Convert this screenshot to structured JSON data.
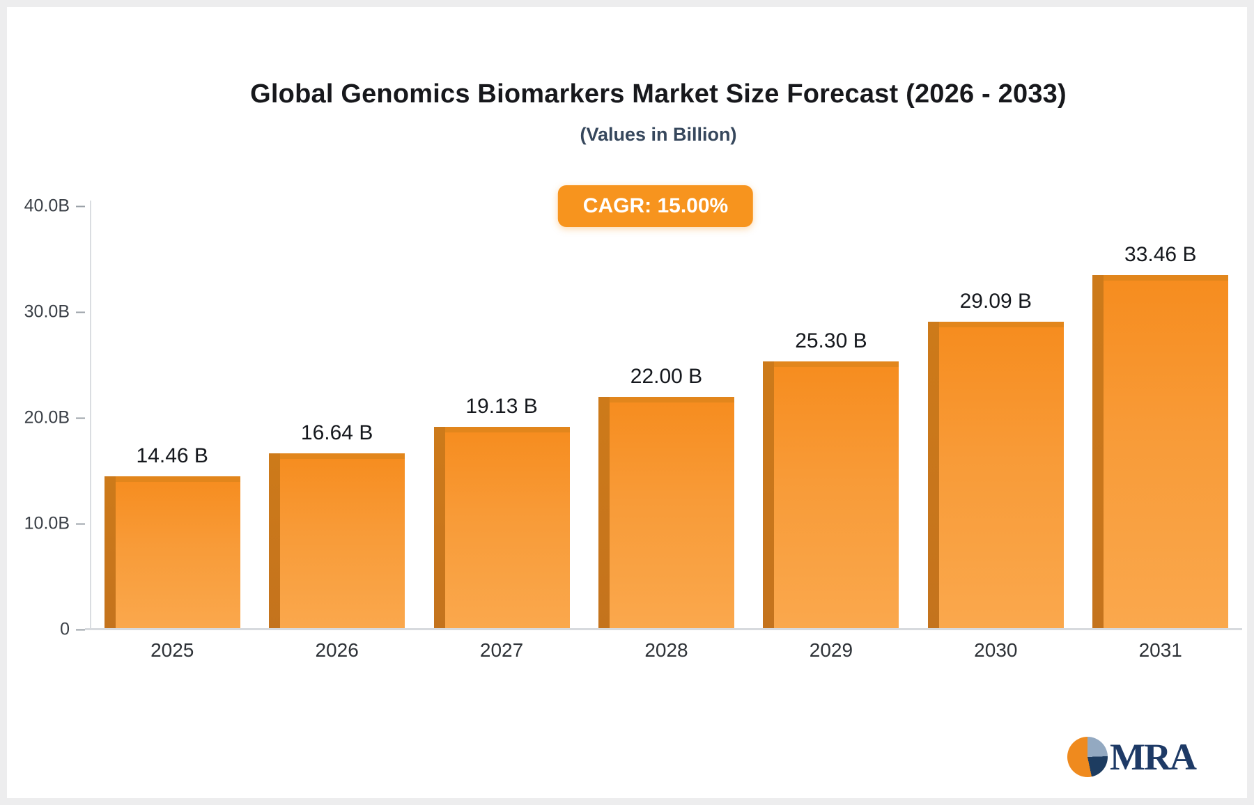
{
  "page": {
    "brand": "MRA"
  },
  "chart_data": {
    "type": "bar",
    "title": "Global Genomics Biomarkers Market Size Forecast (2026 - 2033)",
    "subtitle": "(Values in Billion)",
    "annotation": "CAGR: 15.00%",
    "categories": [
      "2025",
      "2026",
      "2027",
      "2028",
      "2029",
      "2030",
      "2031"
    ],
    "values": [
      14.46,
      16.64,
      19.13,
      22.0,
      25.3,
      29.09,
      33.46
    ],
    "bar_labels": [
      "14.46 B",
      "16.64 B",
      "19.13 B",
      "22.00 B",
      "25.30 B",
      "29.09 B",
      "33.46 B"
    ],
    "ylim": [
      0,
      40
    ],
    "yticks": [
      {
        "value": 40,
        "label": "40.0B"
      },
      {
        "value": 30,
        "label": "30.0B"
      },
      {
        "value": 20,
        "label": "20.0B"
      },
      {
        "value": 10,
        "label": "10.0B"
      },
      {
        "value": 0,
        "label": "0"
      }
    ],
    "grid": false,
    "legend": null,
    "bar_color": "#F7941E",
    "bar_side_color": "#C4731D",
    "badge_color": "#F7941E"
  }
}
